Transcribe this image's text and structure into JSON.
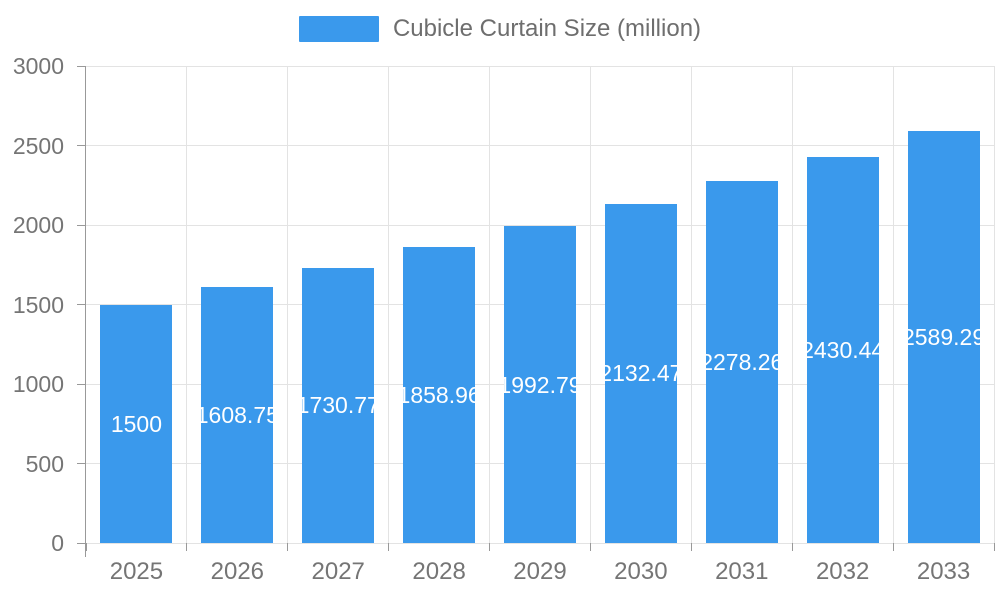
{
  "chart_data": {
    "type": "bar",
    "title": "Cubicle Curtain Size (million)",
    "legend": "Cubicle Curtain Size (million)",
    "legend_position": "top-center",
    "categories": [
      "2025",
      "2026",
      "2027",
      "2028",
      "2029",
      "2030",
      "2031",
      "2032",
      "2033"
    ],
    "series": [
      {
        "name": "Cubicle Curtain Size (million)",
        "values": [
          1500,
          1608.75,
          1730.77,
          1858.96,
          1992.79,
          2132.47,
          2278.26,
          2430.44,
          2589.29
        ],
        "labels": [
          "1500",
          "1608.75",
          "1730.77",
          "1858.96",
          "1992.79",
          "2132.47",
          "2278.26",
          "2430.44",
          "2589.29"
        ]
      }
    ],
    "xlabel": "",
    "ylabel": "",
    "ylim": [
      0,
      3000
    ],
    "yticks": [
      0,
      500,
      1000,
      1500,
      2000,
      2500,
      3000
    ],
    "ytick_labels": [
      "0",
      "500",
      "1000",
      "1500",
      "2000",
      "2500",
      "3000"
    ],
    "grid": true,
    "bar_label_position": "inside-center",
    "colors": {
      "bar": "#3A99EC",
      "grid_line": "#e3e3e3",
      "axis_line": "#999999",
      "axis_text": "#757575",
      "legend_text": "#6e6e6e",
      "bar_label_text": "#ffffff",
      "background": "#ffffff"
    }
  }
}
